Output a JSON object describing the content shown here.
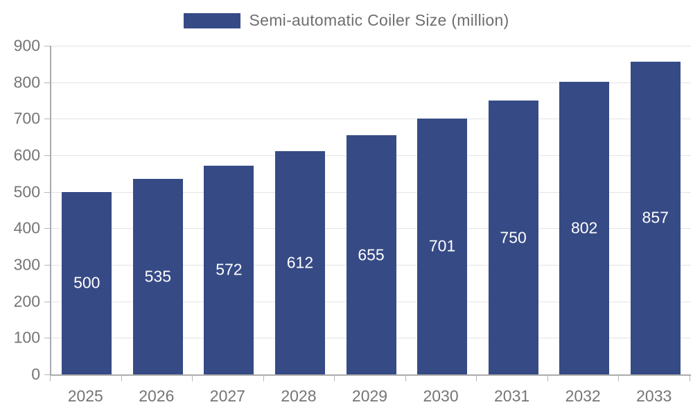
{
  "chart_data": {
    "type": "bar",
    "title": "",
    "legend": "Semi-automatic Coiler Size (million)",
    "categories": [
      "2025",
      "2026",
      "2027",
      "2028",
      "2029",
      "2030",
      "2031",
      "2032",
      "2033"
    ],
    "series": [
      {
        "name": "Semi-automatic Coiler Size (million)",
        "values": [
          500,
          535,
          572,
          612,
          655,
          701,
          750,
          802,
          857
        ]
      }
    ],
    "xlabel": "",
    "ylabel": "",
    "ylim": [
      0,
      900
    ],
    "ytick_step": 100,
    "grid": true,
    "legend_position": "top-center",
    "value_labels": "inside-center",
    "colors": {
      "bar": "#364a85",
      "bar_label": "#ffffff",
      "axis_line": "#ababab",
      "tick": "#b5b5bd",
      "gridline": "#e3e3e3",
      "axis_label": "#757575",
      "legend_text": "#6e6e6e",
      "background": "#ffffff"
    }
  }
}
